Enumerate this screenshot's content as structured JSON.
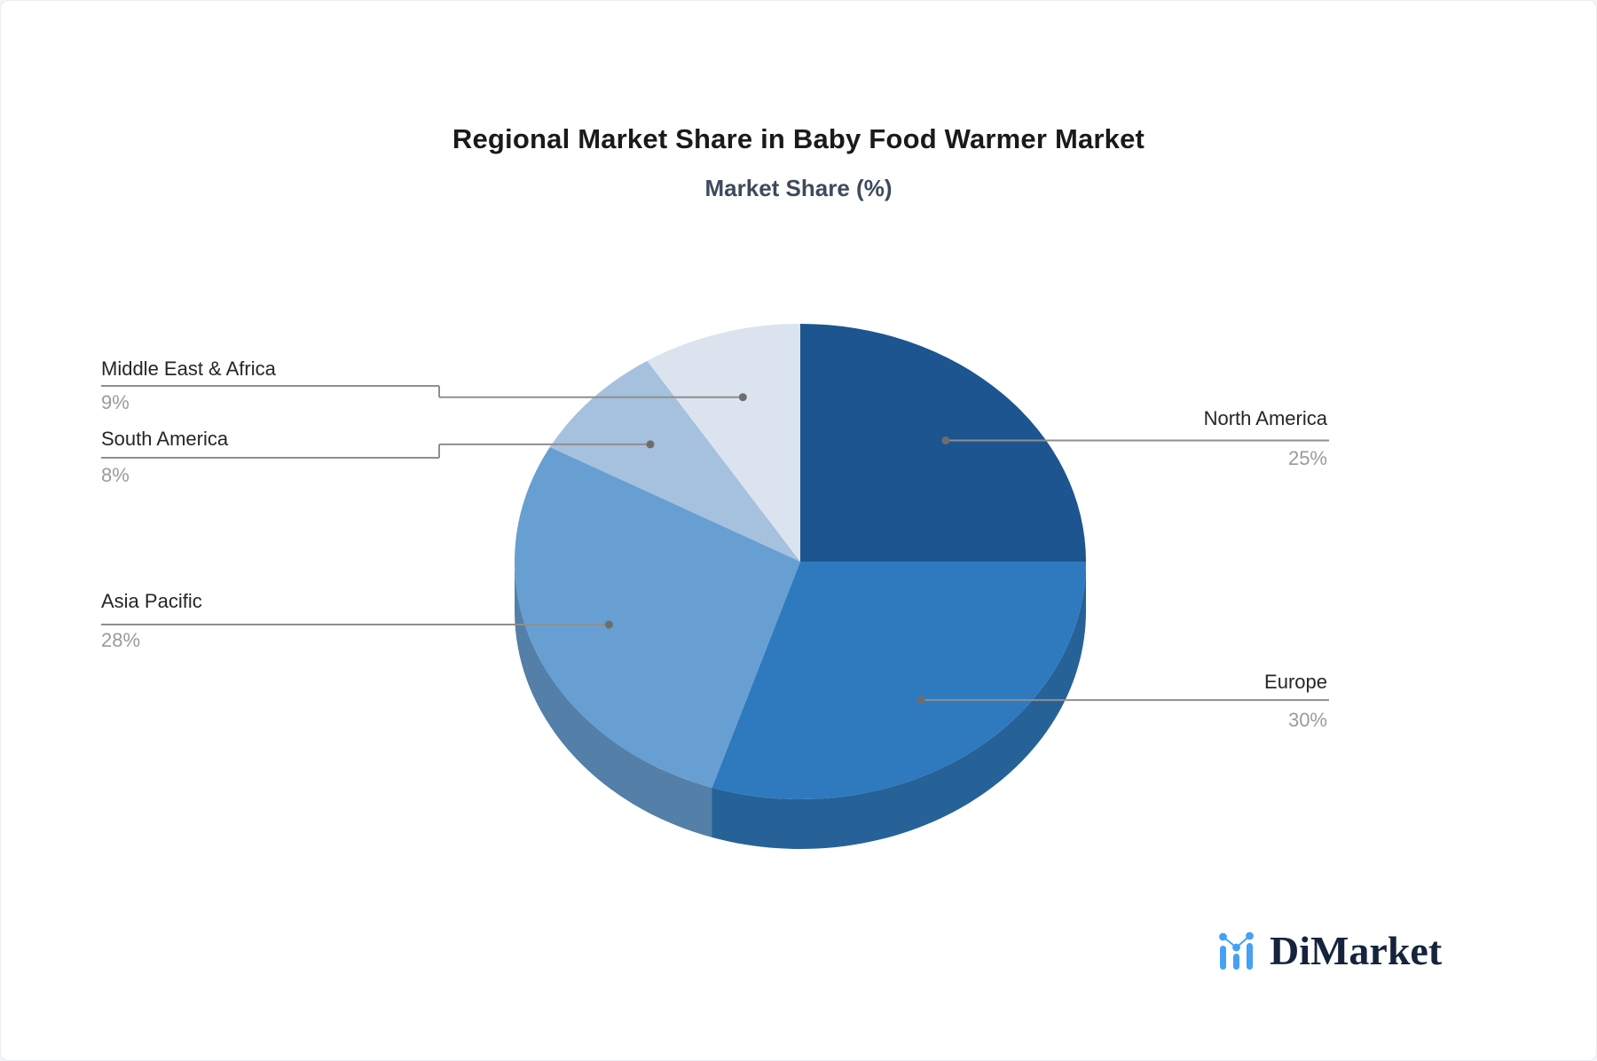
{
  "chart_data": {
    "type": "pie",
    "style": "3d",
    "title": "Regional Market Share in Baby Food Warmer Market",
    "subtitle": "Market Share (%)",
    "unit": "%",
    "start_angle_deg": 0,
    "direction": "clockwise",
    "slices": [
      {
        "label": "North America",
        "value": 25,
        "display": "25%",
        "color": "#1C5590",
        "label_side": "right"
      },
      {
        "label": "Europe",
        "value": 30,
        "display": "30%",
        "color": "#2F7ABE",
        "label_side": "right"
      },
      {
        "label": "Asia Pacific",
        "value": 28,
        "display": "28%",
        "color": "#689FD2",
        "label_side": "left"
      },
      {
        "label": "South America",
        "value": 8,
        "display": "8%",
        "color": "#A6C1DE",
        "label_side": "left"
      },
      {
        "label": "Middle East & Africa",
        "value": 9,
        "display": "9%",
        "color": "#DBE3EF",
        "label_side": "left"
      }
    ]
  },
  "branding": {
    "logo_text": "DiMarket",
    "logo_text_color": "#16233c",
    "logo_icon": "bar-line-chart-icon",
    "logo_icon_color": "#45a0f6"
  },
  "colors": {
    "leader_line": "#8f8f8f",
    "leader_dot": "#6d6d6d",
    "label_text": "#262626",
    "value_text": "#9b9b9b",
    "title": "#1a1a1a",
    "subtitle": "#3e4a5c"
  }
}
